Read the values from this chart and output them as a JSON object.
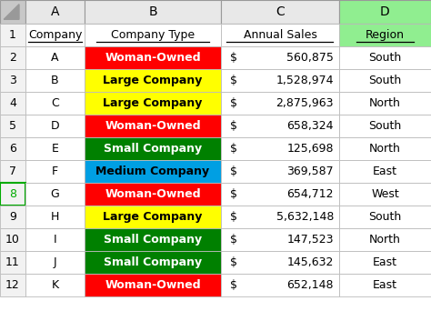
{
  "header_row": [
    "Company",
    "Company Type",
    "Annual Sales",
    "Region"
  ],
  "rows": [
    [
      "A",
      "Woman-Owned",
      "$  560,875",
      "South"
    ],
    [
      "B",
      "Large Company",
      "$1,528,974",
      "South"
    ],
    [
      "C",
      "Large Company",
      "$2,875,963",
      "North"
    ],
    [
      "D",
      "Woman-Owned",
      "$  658,324",
      "South"
    ],
    [
      "E",
      "Small Company",
      "$  125,698",
      "North"
    ],
    [
      "F",
      "Medium Company",
      "$  369,587",
      "East"
    ],
    [
      "G",
      "Woman-Owned",
      "$  654,712",
      "West"
    ],
    [
      "H",
      "Large Company",
      "$5,632,148",
      "South"
    ],
    [
      "I",
      "Small Company",
      "$  147,523",
      "North"
    ],
    [
      "J",
      "Small Company",
      "$  145,632",
      "East"
    ],
    [
      "K",
      "Woman-Owned",
      "$  652,148",
      "East"
    ]
  ],
  "col_b_bg_colors": [
    "#FF0000",
    "#FFFF00",
    "#FFFF00",
    "#FF0000",
    "#008000",
    "#009FE3",
    "#FF0000",
    "#FFFF00",
    "#008000",
    "#008000",
    "#FF0000"
  ],
  "col_b_text_colors": [
    "#FFFFFF",
    "#000000",
    "#000000",
    "#FFFFFF",
    "#FFFFFF",
    "#000000",
    "#FFFFFF",
    "#000000",
    "#FFFFFF",
    "#FFFFFF",
    "#FFFFFF"
  ],
  "col_d_header_bg": "#90EE90",
  "header_bg": "#E8E8E8",
  "row_num_bg": "#F2F2F2",
  "corner_bg": "#C8C8C8",
  "selected_row_num_color": "#00AA00",
  "selected_row_border_color": "#00AA00",
  "grid_color": "#B0B0B0",
  "figsize": [
    4.74,
    3.53
  ],
  "dpi": 100,
  "col_letters": [
    "A",
    "B",
    "C",
    "D"
  ],
  "annual_sales": [
    "$  560,875",
    "$1,528,974",
    "$2,875,963",
    "$  658,324",
    "$  125,698",
    "$  369,587",
    "$  654,712",
    "$5,632,148",
    "$  147,523",
    "$  145,632",
    "$  652,148"
  ]
}
